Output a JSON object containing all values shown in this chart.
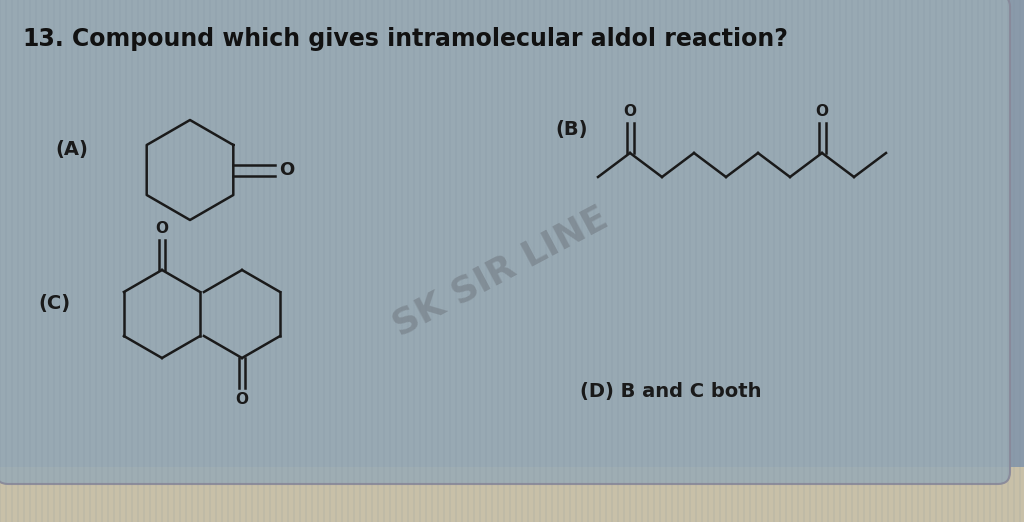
{
  "background_color": "#8a9aaa",
  "card_color": "#9aabb8",
  "question_number": "13.",
  "question_text": "Compound which gives intramolecular aldol reaction?",
  "question_fontsize": 17,
  "label_fontsize": 14,
  "option_d_text": "(D) B and C both",
  "watermark_text": "SK SIR LINE",
  "title_color": "#111111",
  "structure_color": "#1a1a1a",
  "bottom_bg": "#c8c0a8"
}
